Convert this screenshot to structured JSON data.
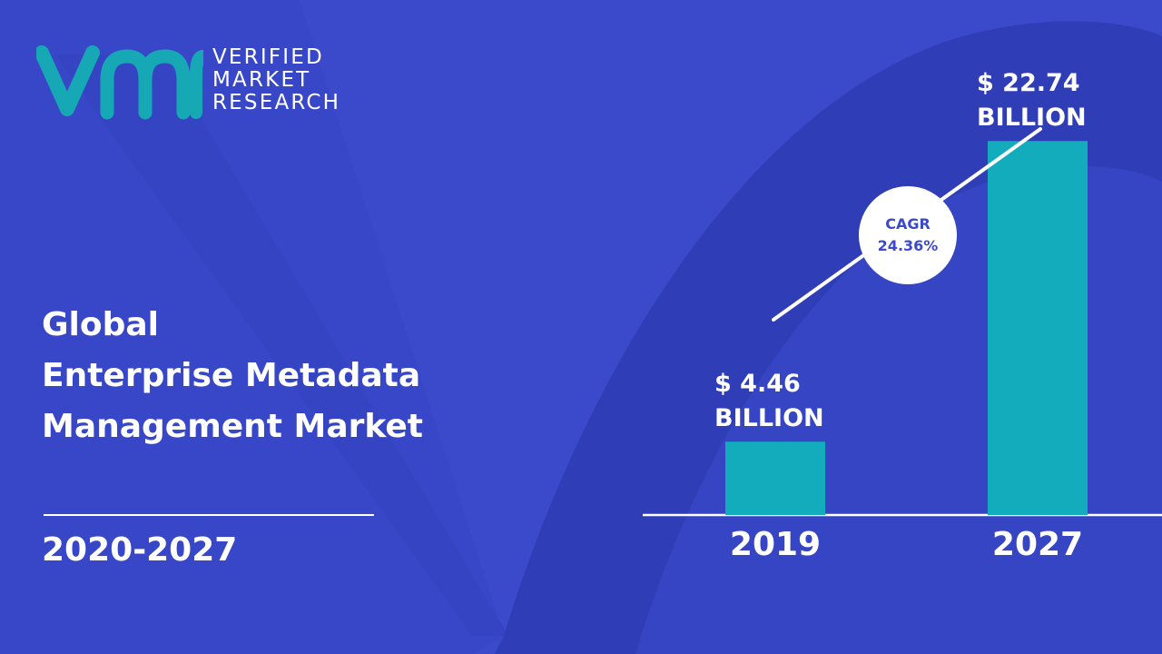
{
  "brand": {
    "lines": [
      "VERIFIED",
      "MARKET",
      "RESEARCH"
    ],
    "logo_mark": "vmr-logo-mark",
    "logo_color": "#17a8b5"
  },
  "colors": {
    "background": "#3b4acb",
    "background_shape": "#2f3db6",
    "bar": "#12acbd",
    "text": "#ffffff"
  },
  "title": {
    "lines": [
      "Global",
      "Enterprise Metadata",
      "Management Market"
    ],
    "period": "2020-2027"
  },
  "cagr": {
    "label": "CAGR",
    "value": "24.36%"
  },
  "chart_data": {
    "type": "bar",
    "categories": [
      "2019",
      "2027"
    ],
    "values": [
      4.46,
      22.74
    ],
    "value_labels": [
      [
        "$ 4.46",
        "BILLION"
      ],
      [
        "$ 22.74",
        "BILLION"
      ]
    ],
    "title": "",
    "xlabel": "",
    "ylabel": "",
    "ylim": [
      0,
      24.3
    ],
    "grid": false,
    "legend": "none"
  }
}
